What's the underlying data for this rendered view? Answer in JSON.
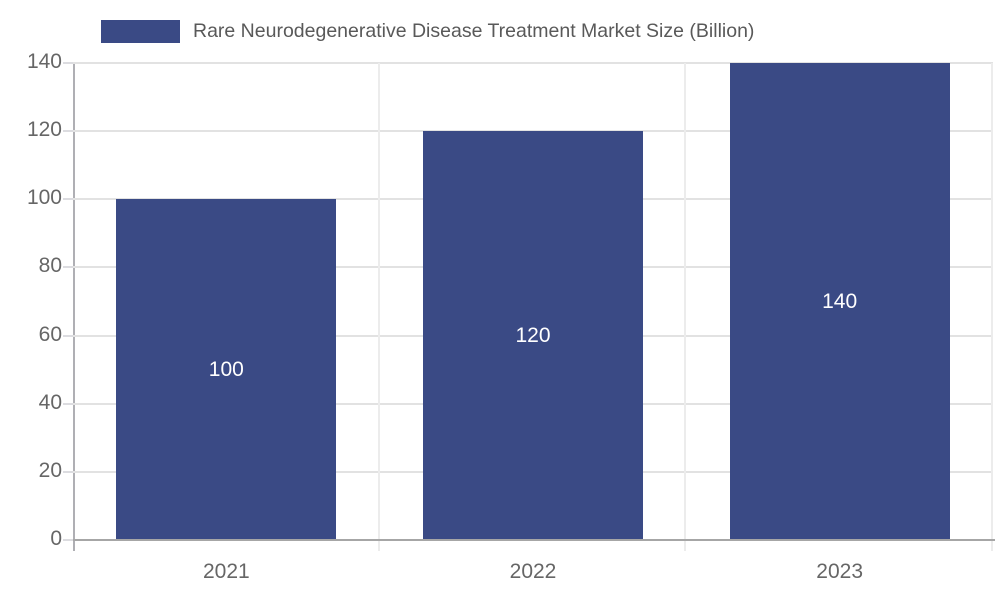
{
  "legend": {
    "label": "Rare Neurodegenerative Disease Treatment Market Size (Billion)"
  },
  "chart_data": {
    "type": "bar",
    "title": "Rare Neurodegenerative Disease Treatment Market Size (Billion)",
    "categories": [
      "2021",
      "2022",
      "2023"
    ],
    "values": [
      100,
      120,
      140
    ],
    "value_labels": [
      "100",
      "120",
      "140"
    ],
    "yticks": [
      0,
      20,
      40,
      60,
      80,
      100,
      120,
      140
    ],
    "ylim": [
      0,
      140
    ],
    "xlabel": "",
    "ylabel": "",
    "grid": true,
    "legend_position": "top-left"
  },
  "colors": {
    "bar": "#3A4A85",
    "legend_text": "#595959",
    "tick_text": "#666666",
    "grid_horizontal": "#E2E2E2",
    "grid_vertical": "#ECECEC",
    "tick_mark": "#DCDCE0",
    "axis_bottom": "#A6A6A6",
    "axis_left": "#AFAFB4",
    "value_label": "#FFFFFF",
    "background": "#FFFFFF"
  }
}
